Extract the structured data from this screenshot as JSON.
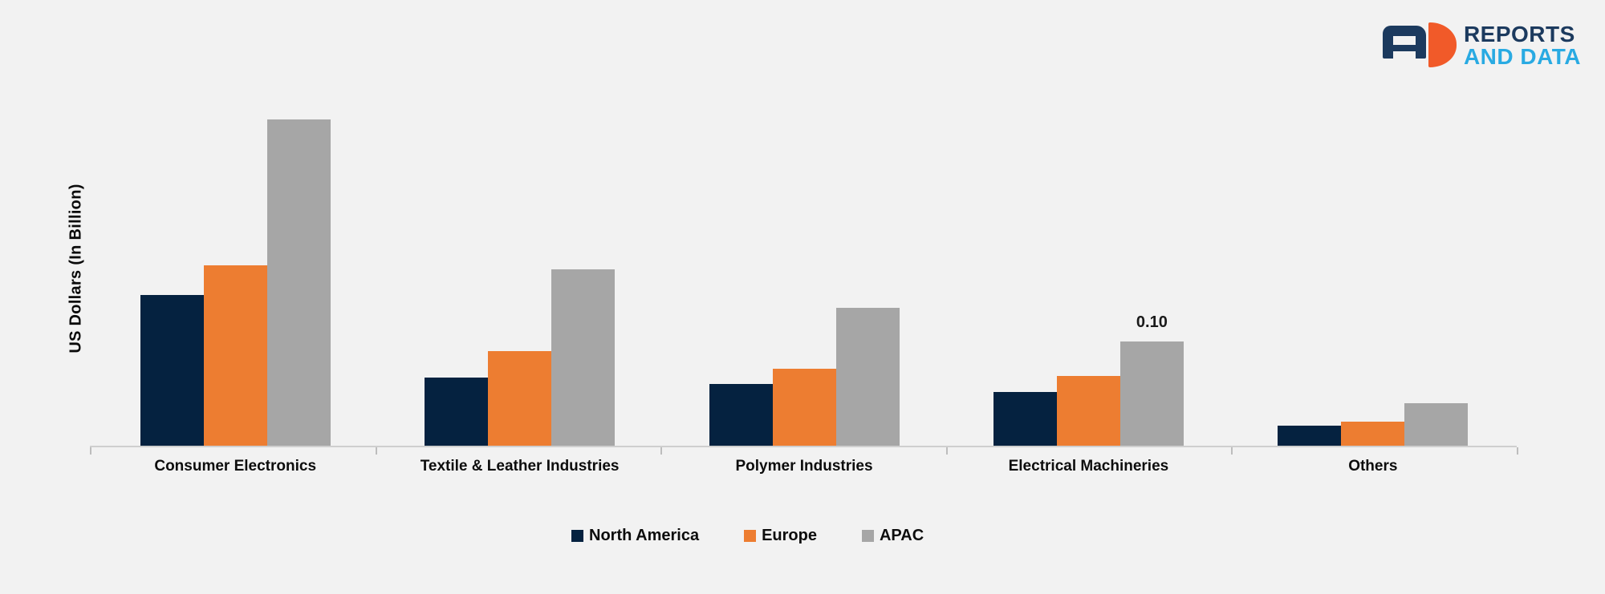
{
  "page": {
    "background_color": "#f2f2f2"
  },
  "logo": {
    "text_line1": "REPORTS",
    "text_line2": "AND DATA",
    "navy": "#1c3a5e",
    "orange": "#f15a29",
    "blue": "#29aae2"
  },
  "chart_data": {
    "type": "bar",
    "title": "",
    "ylabel": "US Dollars  (In Billion)",
    "xlabel": "",
    "categories": [
      "Consumer Electronics",
      "Textile & Leather Industries",
      "Polymer Industries",
      "Electrical Machineries",
      "Others"
    ],
    "series": [
      {
        "name": "North America",
        "color": "#052240",
        "values": [
          0.145,
          0.066,
          0.06,
          0.052,
          0.02
        ]
      },
      {
        "name": "Europe",
        "color": "#ed7d31",
        "values": [
          0.173,
          0.091,
          0.074,
          0.067,
          0.024
        ]
      },
      {
        "name": "APAC",
        "color": "#a6a6a6",
        "values": [
          0.312,
          0.169,
          0.132,
          0.1,
          0.041
        ]
      }
    ],
    "data_labels": [
      {
        "category_index": 3,
        "series_index": 2,
        "text": "0.10"
      }
    ],
    "ylim": [
      0,
      0.34
    ],
    "grid": false,
    "y_axis_ticks_visible": false,
    "legend_position": "bottom",
    "axis_color": "#cfcfcf"
  }
}
